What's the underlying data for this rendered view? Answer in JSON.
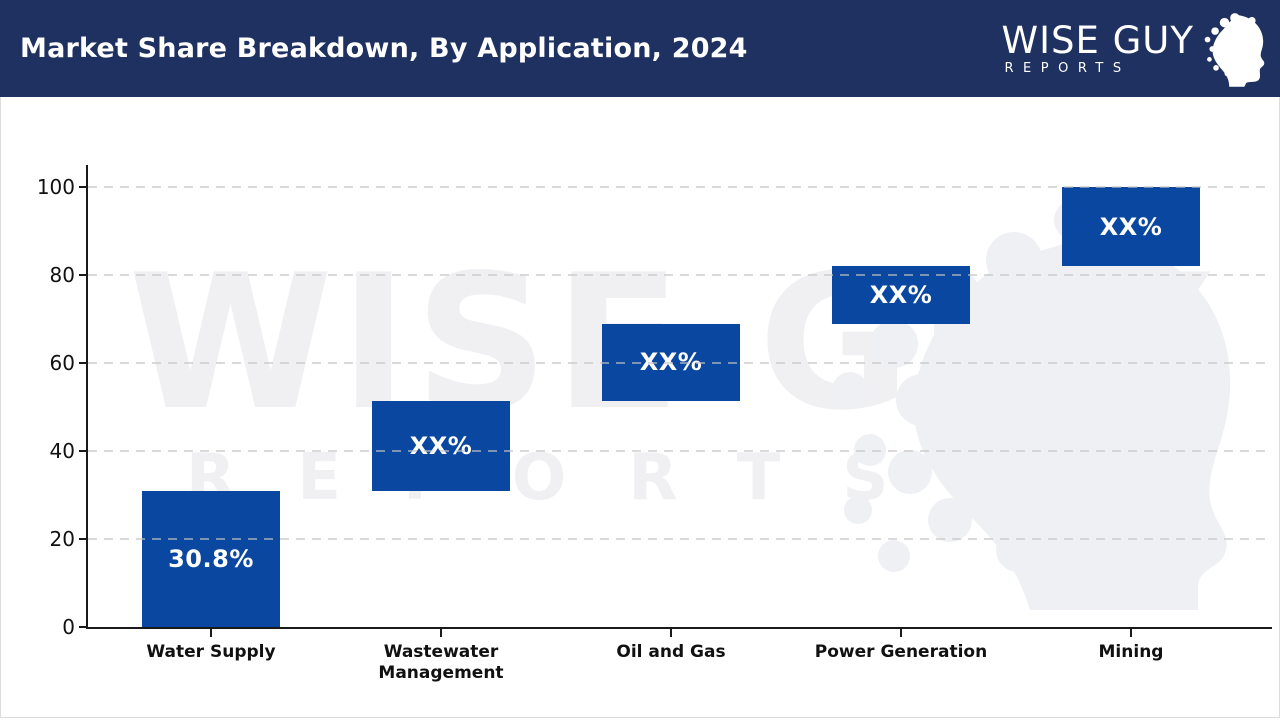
{
  "header": {
    "title": "Market Share Breakdown, By Application, 2024",
    "logo": {
      "line1": "WISE GUY",
      "line2": "REPORTS"
    }
  },
  "watermark": {
    "line1": "WISE GUY",
    "line2": "REPORTS"
  },
  "colors": {
    "header_bg": "#1e3160",
    "bar": "#0a47a1",
    "bar_label": "#ffffff",
    "gridline": "#c4c4c4",
    "axis": "#1a1a1a",
    "watermark": "#f0f0f3"
  },
  "chart_data": {
    "type": "bar",
    "subtype": "waterfall",
    "title": "Market Share Breakdown, By Application, 2024",
    "categories": [
      "Water Supply",
      "Wastewater Management",
      "Oil and Gas",
      "Power Generation",
      "Mining"
    ],
    "bars": [
      {
        "category": "Water Supply",
        "start": 0,
        "end": 30.8,
        "label": "30.8%"
      },
      {
        "category": "Wastewater Management",
        "start": 30.8,
        "end": 51.4,
        "label": "XX%"
      },
      {
        "category": "Oil and Gas",
        "start": 51.4,
        "end": 68.9,
        "label": "XX%"
      },
      {
        "category": "Power Generation",
        "start": 68.9,
        "end": 82.0,
        "label": "XX%"
      },
      {
        "category": "Mining",
        "start": 82.0,
        "end": 100.0,
        "label": "XX%"
      }
    ],
    "yticks": [
      0,
      20,
      40,
      60,
      80,
      100
    ],
    "ylim": [
      0,
      100
    ],
    "xlabel": "",
    "ylabel": "",
    "grid": "dashed horizontal",
    "legend": "none"
  }
}
